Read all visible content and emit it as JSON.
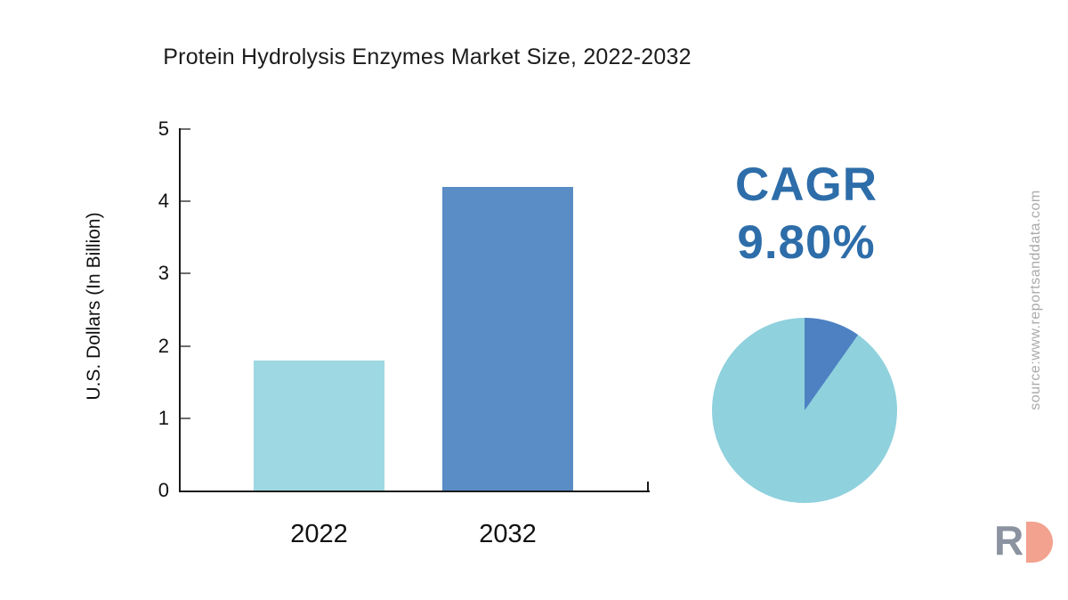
{
  "title": "Protein Hydrolysis Enzymes Market Size, 2022-2032",
  "chart_data": {
    "type": "bar",
    "title": "Protein Hydrolysis Enzymes Market Size, 2022-2032",
    "categories": [
      "2022",
      "2032"
    ],
    "values": [
      1.8,
      4.2
    ],
    "xlabel": "",
    "ylabel": "U.S. Dollars (In Billion)",
    "ylim": [
      0,
      5
    ],
    "yticks": [
      0,
      1,
      2,
      3,
      4,
      5
    ],
    "grid": false,
    "legend": "none",
    "bar_colors": [
      "#9ed8e2",
      "#5a8cc6"
    ]
  },
  "cagr": {
    "label": "CAGR",
    "value": "9.80%",
    "percent": 9.8,
    "color": "#2d6da9"
  },
  "pie": {
    "type": "pie",
    "slices": [
      {
        "name": "cagr-highlight",
        "fraction": 0.098,
        "color": "#4d81c2"
      },
      {
        "name": "remainder",
        "fraction": 0.902,
        "color": "#8fd1dd"
      }
    ],
    "start_angle_deg": 0
  },
  "source": {
    "text": "source:www.reportsanddata.com",
    "color": "#aaaaaa"
  },
  "logo": {
    "letter": "R",
    "r_color": "#8b92a0",
    "d_color": "#f2a28e"
  }
}
